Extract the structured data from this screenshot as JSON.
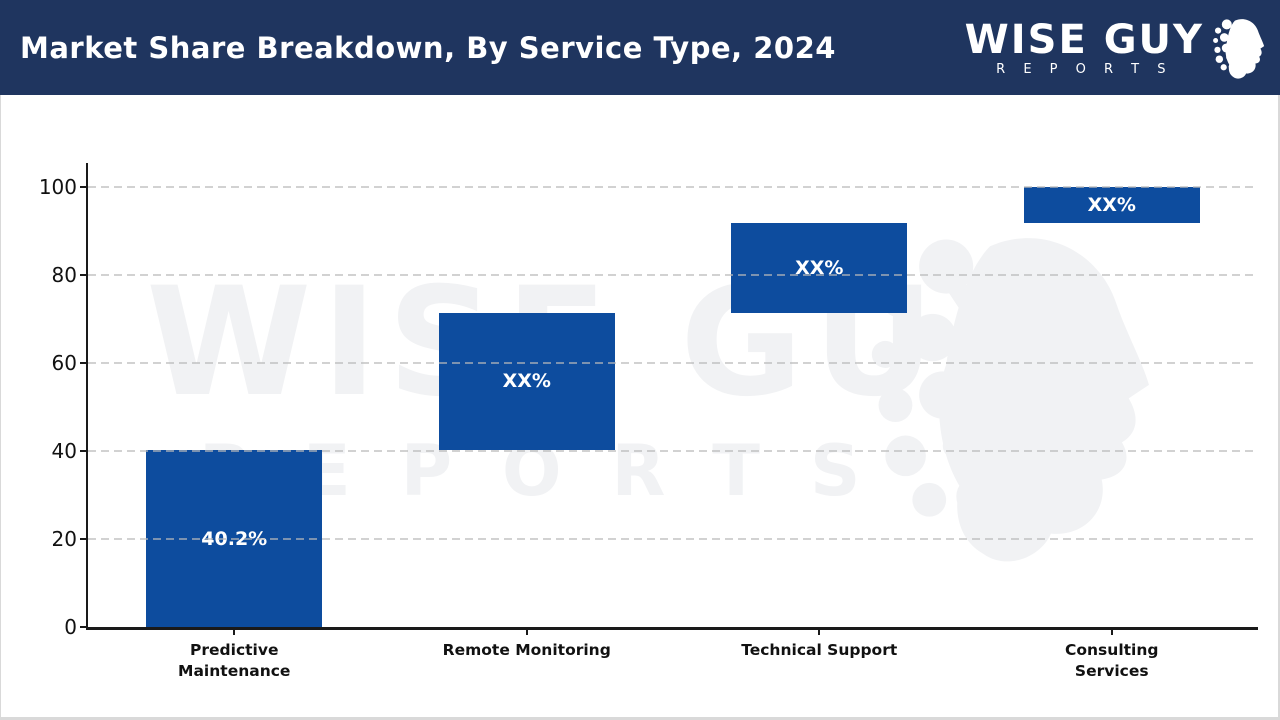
{
  "header": {
    "title": "Market Share Breakdown, By Service Type, 2024",
    "logo": {
      "line1": "WISE GUY",
      "line2": "R E P O R T S"
    }
  },
  "watermark": {
    "line1": "WISE GUY",
    "line2": "REPORTS"
  },
  "chart_data": {
    "type": "bar",
    "subtype": "waterfall",
    "title": "Market Share Breakdown, By Service Type, 2024",
    "categories": [
      "Predictive\nMaintenance",
      "Remote Monitoring",
      "Technical Support",
      "Consulting\nServices"
    ],
    "segments": [
      {
        "category": "Predictive Maintenance",
        "start": 0,
        "end": 40.2,
        "label": "40.2%"
      },
      {
        "category": "Remote Monitoring",
        "start": 40.2,
        "end": 71.4,
        "label": "XX%"
      },
      {
        "category": "Technical Support",
        "start": 71.4,
        "end": 91.8,
        "label": "XX%"
      },
      {
        "category": "Consulting Services",
        "start": 91.8,
        "end": 100,
        "label": "XX%"
      }
    ],
    "ylim": [
      0,
      100
    ],
    "yticks": [
      0,
      20,
      40,
      60,
      80,
      100
    ],
    "xlabel": "",
    "ylabel": "",
    "bar_color": "#0d4c9e",
    "grid": "dashed horizontal",
    "legend": "none"
  }
}
